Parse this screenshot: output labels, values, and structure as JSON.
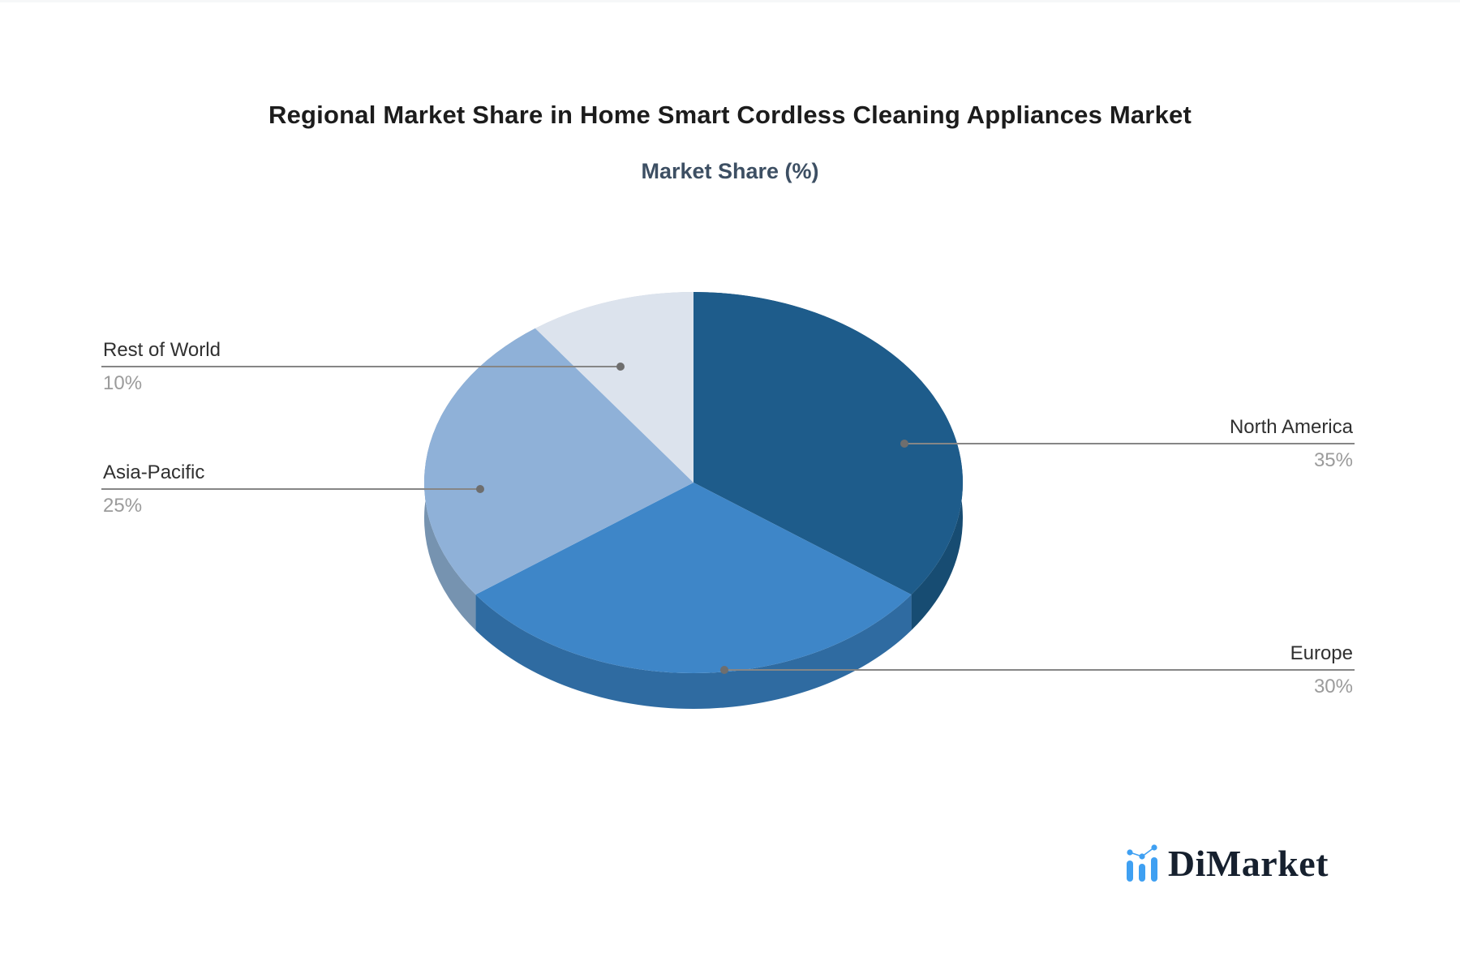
{
  "header": {
    "title": "Regional Market Share in Home Smart Cordless Cleaning Appliances Market",
    "subtitle": "Market Share (%)"
  },
  "chart_data": {
    "type": "pie",
    "style": "3d",
    "title": "Regional Market Share in Home Smart Cordless Cleaning Appliances Market",
    "subtitle": "Market Share (%)",
    "unit": "%",
    "start_angle_deg": 0,
    "direction": "clockwise",
    "legend_position": "none",
    "slices": [
      {
        "label": "North America",
        "value": 35,
        "display": "35%",
        "color": "#1e5c8b",
        "side_color": "#174c72",
        "label_side": "right"
      },
      {
        "label": "Europe",
        "value": 30,
        "display": "30%",
        "color": "#3e86c8",
        "side_color": "#2f6ba1",
        "label_side": "right"
      },
      {
        "label": "Asia-Pacific",
        "value": 25,
        "display": "25%",
        "color": "#8fb1d8",
        "side_color": "#7693b0",
        "label_side": "left"
      },
      {
        "label": "Rest of World",
        "value": 10,
        "display": "10%",
        "color": "#dce3ed",
        "side_color": "#c5cedd",
        "label_side": "left"
      }
    ],
    "connector_color": "#868686",
    "connector_dot_color": "#6e6e6e",
    "label_color": "#303030",
    "value_color": "#9b9b9b"
  },
  "logo": {
    "text": "DiMarket",
    "icon": "bar-line-chart-icon",
    "icon_color": "#3fa0f2",
    "text_color": "#16202e"
  }
}
